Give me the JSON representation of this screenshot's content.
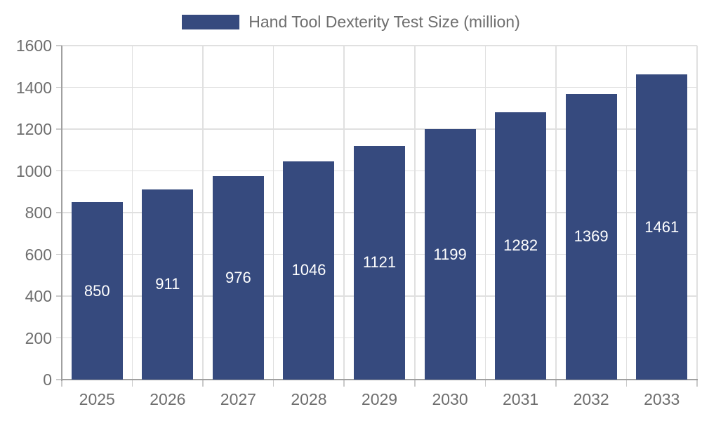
{
  "legend": {
    "label": "Hand Tool Dexterity Test Size (million)"
  },
  "chart_data": {
    "type": "bar",
    "title": "Hand Tool Dexterity Test Size (million)",
    "categories": [
      "2025",
      "2026",
      "2027",
      "2028",
      "2029",
      "2030",
      "2031",
      "2032",
      "2033"
    ],
    "values": [
      850,
      911,
      976,
      1046,
      1121,
      1199,
      1282,
      1369,
      1461
    ],
    "xlabel": "",
    "ylabel": "",
    "ylim": [
      0,
      1600
    ],
    "yticks": [
      0,
      200,
      400,
      600,
      800,
      1000,
      1200,
      1400,
      1600
    ],
    "grid": true,
    "legend_position": "top-center",
    "bar_labels_inside": true,
    "colors": {
      "bar": "#364A7E",
      "grid": "#E0E0E0",
      "axis": "#A0A0A0",
      "tick": "#C9C9C9",
      "axis_text": "#6E6E6E",
      "value_label": "#FFFFFF",
      "background": "#FFFFFF"
    }
  }
}
